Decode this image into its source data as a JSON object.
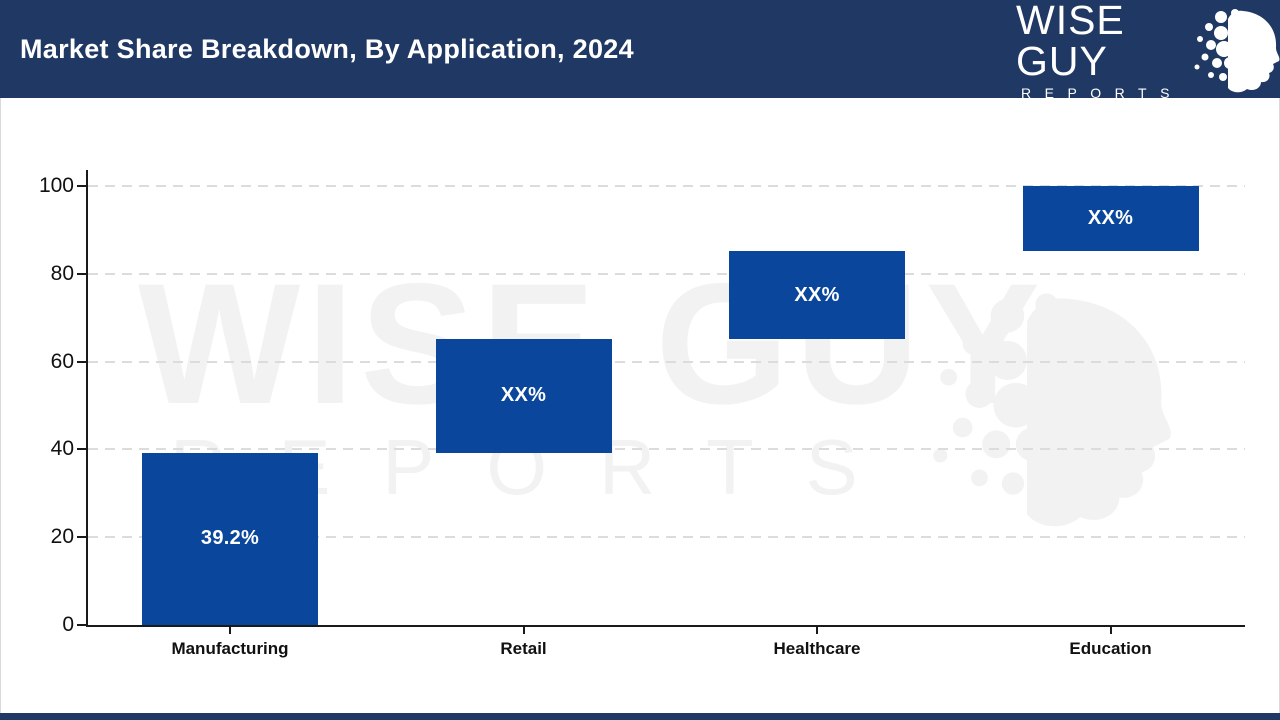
{
  "header": {
    "title": "Market Share Breakdown, By Application, 2024",
    "logo": {
      "line1": "WISE GUY",
      "line2": "REPORTS"
    }
  },
  "watermark": {
    "line1": "WISE GUY",
    "line2": "REPORTS"
  },
  "colors": {
    "header_bg": "#203864",
    "footer_bg": "#203864",
    "bar": "#0a469b",
    "grid": "#dcdcdc",
    "axis": "#1a1a1a",
    "watermark": "#f2f2f3",
    "bar_label": "#ffffff"
  },
  "chart_data": {
    "type": "bar",
    "subtype": "waterfall",
    "title": "Market Share Breakdown, By Application, 2024",
    "categories": [
      "Manufacturing",
      "Retail",
      "Healthcare",
      "Education"
    ],
    "segments": [
      {
        "label": "Manufacturing",
        "start": 0,
        "end": 39.2,
        "display": "39.2%"
      },
      {
        "label": "Retail",
        "start": 39.2,
        "end": 65.2,
        "display": "XX%"
      },
      {
        "label": "Healthcare",
        "start": 65.2,
        "end": 85.1,
        "display": "XX%"
      },
      {
        "label": "Education",
        "start": 85.1,
        "end": 100,
        "display": "XX%"
      }
    ],
    "y_ticks": [
      0,
      20,
      40,
      60,
      80,
      100
    ],
    "ylim": [
      0,
      100
    ],
    "xlabel": "",
    "ylabel": "",
    "grid": "horizontal-dashed",
    "legend": "none"
  }
}
